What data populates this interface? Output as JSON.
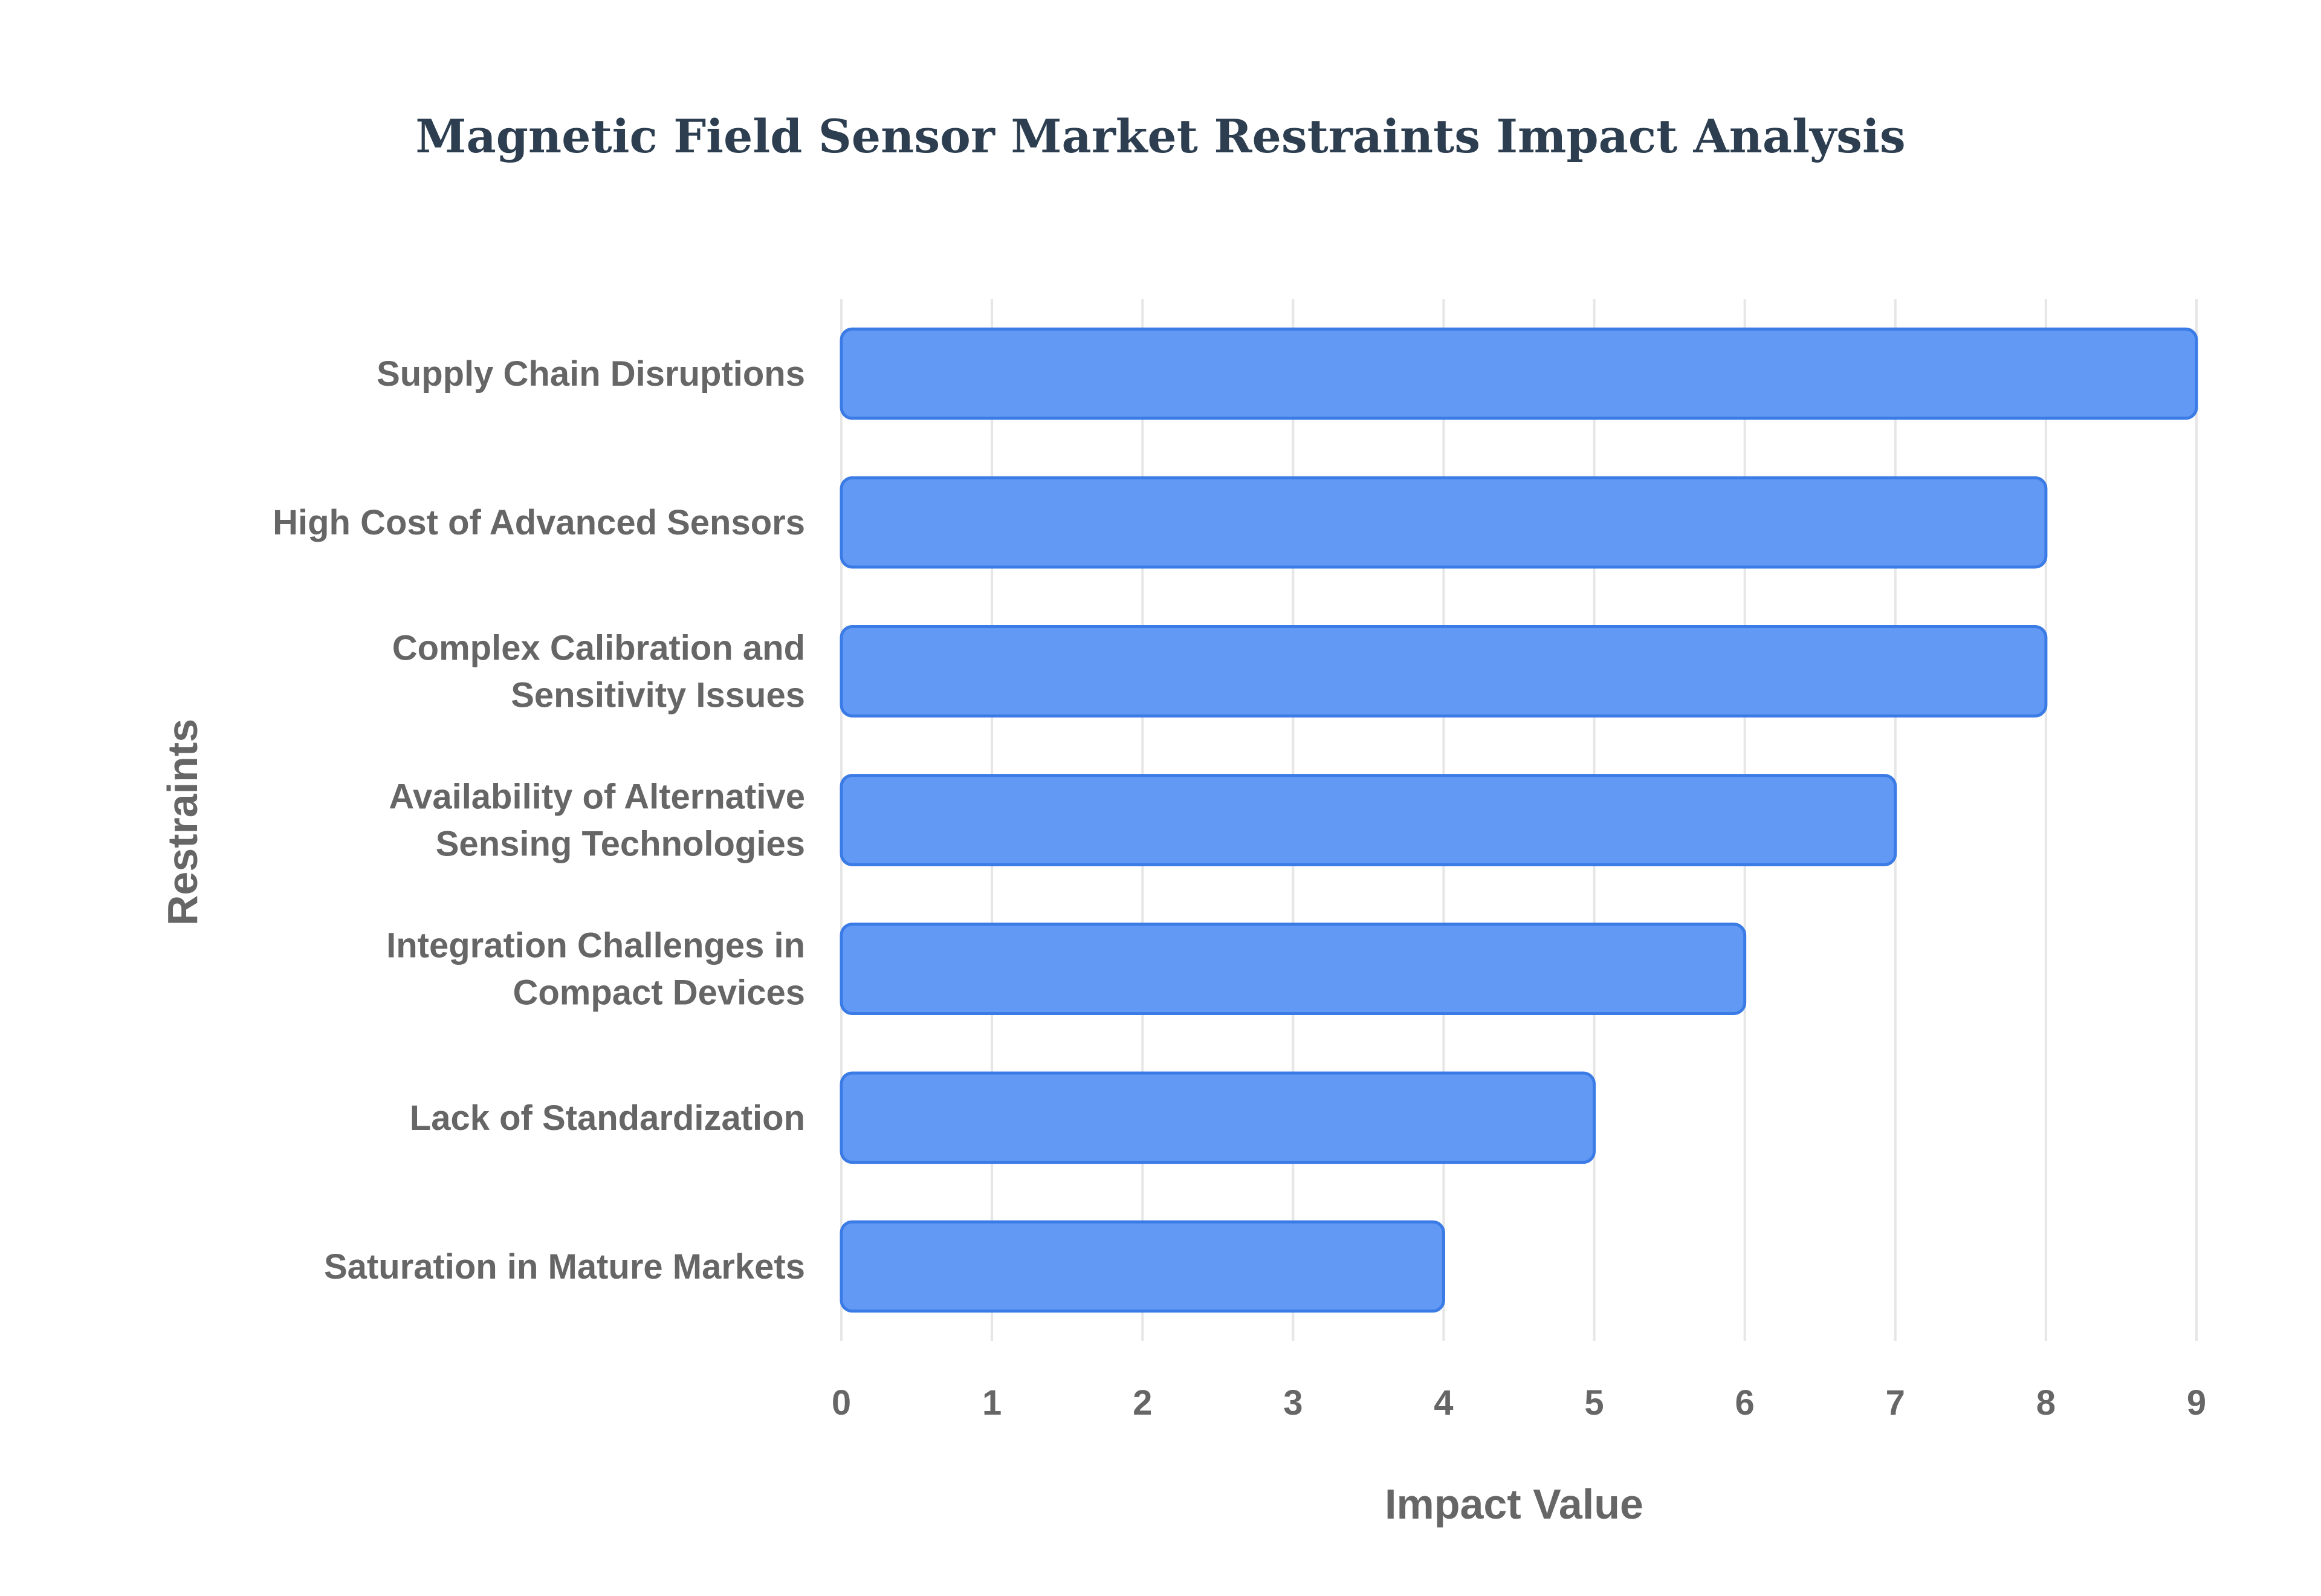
{
  "chart_data": {
    "type": "bar",
    "orientation": "horizontal",
    "title": "Magnetic Field Sensor Market Restraints Impact Analysis",
    "xlabel": "Impact Value",
    "ylabel": "Restraints",
    "xlim": [
      0,
      9
    ],
    "x_ticks": [
      "0",
      "1",
      "2",
      "3",
      "4",
      "5",
      "6",
      "7",
      "8",
      "9"
    ],
    "grid": true,
    "legend": "none",
    "categories": [
      "Supply Chain Disruptions",
      "High Cost of Advanced Sensors",
      "Complex Calibration and Sensitivity Issues",
      "Availability of Alternative Sensing Technologies",
      "Integration Challenges in Compact Devices",
      "Lack of Standardization",
      "Saturation in Mature Markets"
    ],
    "category_lines": [
      [
        "Supply Chain Disruptions"
      ],
      [
        "High Cost of Advanced Sensors"
      ],
      [
        "Complex Calibration and",
        "Sensitivity Issues"
      ],
      [
        "Availability of Alternative",
        "Sensing Technologies"
      ],
      [
        "Integration Challenges in",
        "Compact Devices"
      ],
      [
        "Lack of Standardization"
      ],
      [
        "Saturation in Mature Markets"
      ]
    ],
    "values": [
      9,
      8,
      8,
      7,
      6,
      5,
      4
    ],
    "colors": {
      "bar_fill": "#6199f4",
      "bar_stroke": "#3b7be6",
      "grid": "#e6e6e6",
      "title": "#2c3e50",
      "label": "#666666"
    }
  }
}
